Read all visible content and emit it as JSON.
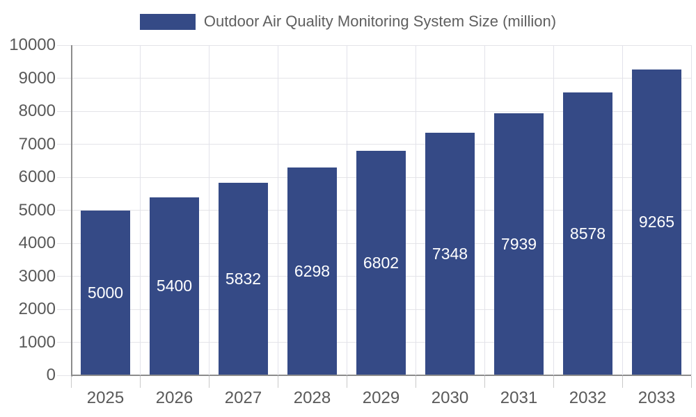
{
  "legend": {
    "label": "Outdoor Air Quality Monitoring System Size (million)"
  },
  "chart_data": {
    "type": "bar",
    "title": "Outdoor Air Quality Monitoring System Size (million)",
    "series_name": "Outdoor Air Quality Monitoring System Size (million)",
    "categories": [
      "2025",
      "2026",
      "2027",
      "2028",
      "2029",
      "2030",
      "2031",
      "2032",
      "2033"
    ],
    "values": [
      5000,
      5400,
      5832,
      6298,
      6802,
      7348,
      7939,
      8578,
      9265
    ],
    "value_labels": [
      "5000",
      "5400",
      "5832",
      "6298",
      "6802",
      "7348",
      "7939",
      "8578",
      "9265"
    ],
    "xlabel": "",
    "ylabel": "",
    "ylim": [
      0,
      10000
    ],
    "ytick_step": 1000,
    "ytick_labels": [
      "0",
      "1000",
      "2000",
      "3000",
      "4000",
      "5000",
      "6000",
      "7000",
      "8000",
      "9000",
      "10000"
    ],
    "grid": true,
    "legend_position": "top",
    "bar_color": "#354a86",
    "bar_label_color": "#ffffff",
    "axis_text_color": "#595959"
  }
}
